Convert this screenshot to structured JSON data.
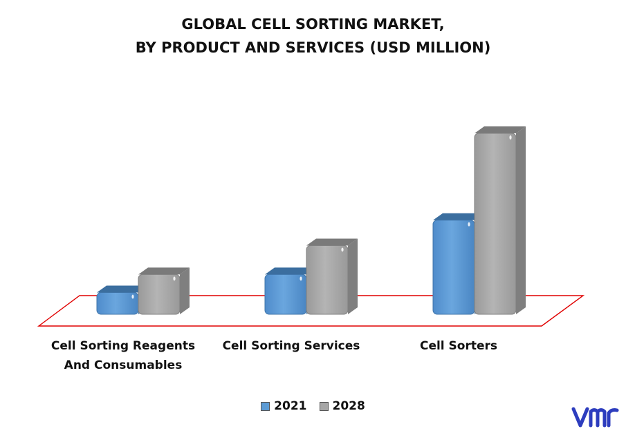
{
  "colors": {
    "s2021": "#5b9bd5",
    "s2028": "#a6a6a6",
    "floor": "#e00000"
  },
  "chart_data": {
    "type": "bar",
    "title_lines": [
      "GLOBAL CELL SORTING MARKET,",
      "BY PRODUCT AND SERVICES (USD MILLION)"
    ],
    "categories": [
      [
        "Cell Sorting Reagents",
        "And Consumables"
      ],
      [
        "Cell Sorting Services"
      ],
      [
        "Cell Sorters"
      ]
    ],
    "series": [
      {
        "name": "2021",
        "values": [
          12,
          22,
          52
        ]
      },
      {
        "name": "2028",
        "values": [
          22,
          38,
          100
        ]
      }
    ],
    "ylim": [
      0,
      100
    ],
    "grid": false,
    "legend": "bottom"
  },
  "logo": {
    "text": "vmr"
  }
}
